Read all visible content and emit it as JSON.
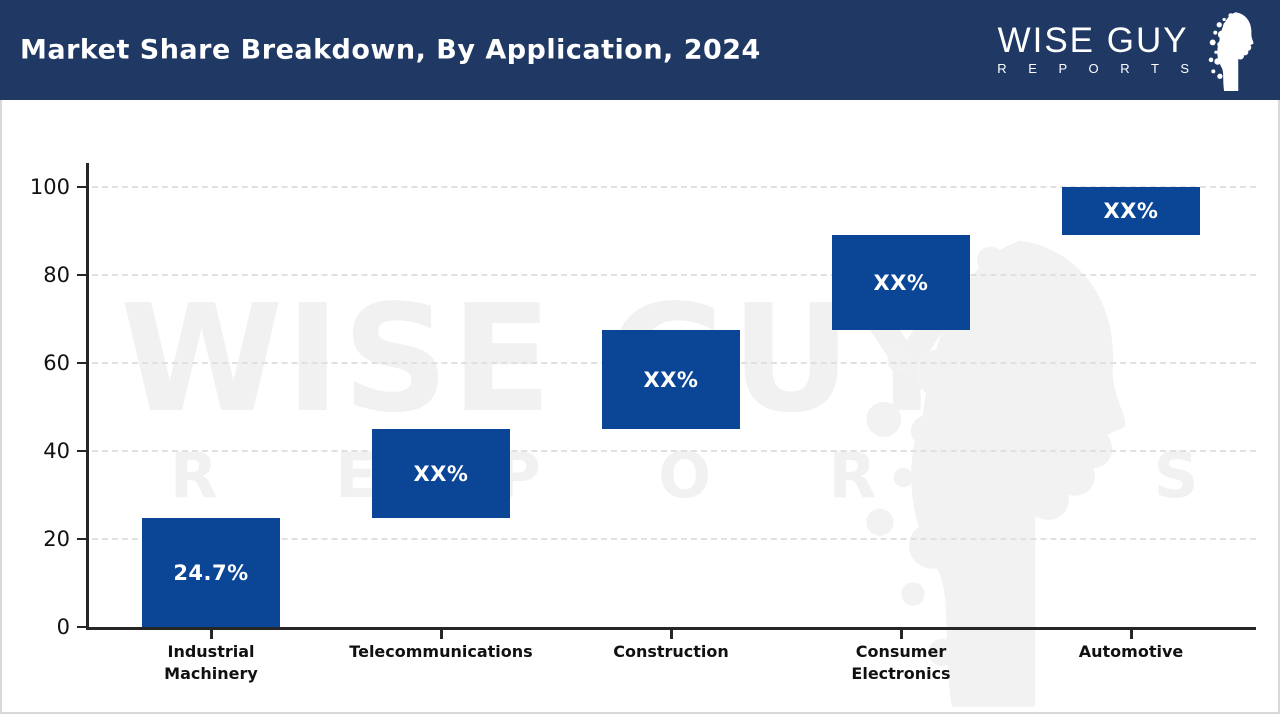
{
  "header": {
    "title": "Market Share Breakdown, By Application, 2024",
    "background_color": "#1f3864",
    "logo": {
      "line1": "WISE GUY",
      "line2": "R E P O R T S"
    }
  },
  "watermark": {
    "line1": "WISE GUY",
    "line2": "R E P O R T S"
  },
  "chart_data": {
    "type": "bar",
    "subtype": "floating-waterfall",
    "title": "Market Share Breakdown, By Application, 2024",
    "categories": [
      "Industrial Machinery",
      "Telecommunications",
      "Construction",
      "Consumer Electronics",
      "Automotive"
    ],
    "category_label_lines": [
      [
        "Industrial",
        "Machinery"
      ],
      [
        "Telecommunications"
      ],
      [
        "Construction"
      ],
      [
        "Consumer",
        "Electronics"
      ],
      [
        "Automotive"
      ]
    ],
    "bars": [
      {
        "category": "Industrial Machinery",
        "from": 0,
        "to": 24.7,
        "label": "24.7%"
      },
      {
        "category": "Telecommunications",
        "from": 24.7,
        "to": 45.0,
        "label": "XX%"
      },
      {
        "category": "Construction",
        "from": 45.0,
        "to": 67.5,
        "label": "XX%"
      },
      {
        "category": "Consumer Electronics",
        "from": 67.5,
        "to": 89.0,
        "label": "XX%"
      },
      {
        "category": "Automotive",
        "from": 89.0,
        "to": 100.0,
        "label": "XX%"
      }
    ],
    "xlabel": "",
    "ylabel": "",
    "yticks": [
      0,
      20,
      40,
      60,
      80,
      100
    ],
    "ylim": [
      0,
      105.5
    ],
    "grid": {
      "horizontal": true,
      "style": "dashed"
    },
    "legend": null,
    "colors": {
      "bar": "#0a4596",
      "bar_label": "#ffffff",
      "axis": "#262626",
      "grid": "#e0e0e0",
      "header_background": "#1f3864",
      "watermark": "#f1f1f2"
    }
  }
}
